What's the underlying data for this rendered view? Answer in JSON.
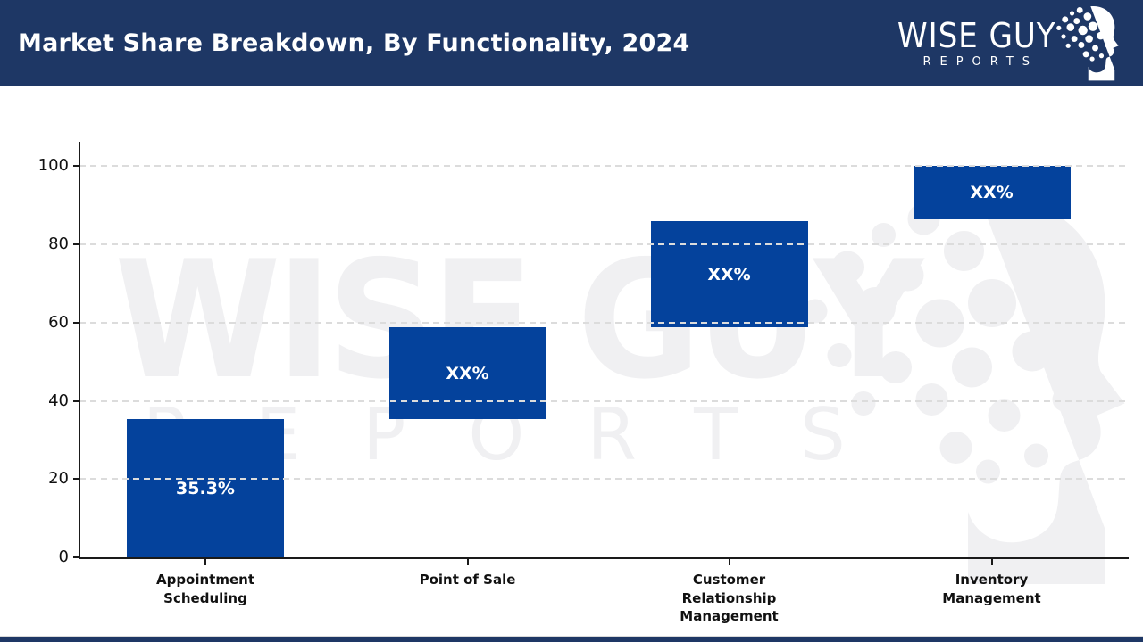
{
  "header": {
    "title": "Market Share Breakdown, By Functionality, 2024",
    "logo_line1": "WISE GUY",
    "logo_line2": "REPORTS"
  },
  "watermark": {
    "line1": "WISE GUY",
    "line2": "REPORTS"
  },
  "colors": {
    "header_bg": "#1e3765",
    "bar": "#04429c",
    "bar_label": "#ffffff",
    "grid": "#dcdcdc",
    "axis": "#1a1a1a",
    "watermark": "#f0f0f2"
  },
  "chart_data": {
    "type": "bar",
    "subtype": "waterfall",
    "title": "Market Share Breakdown, By Functionality, 2024",
    "categories": [
      "Appointment Scheduling",
      "Point of Sale",
      "Customer Relationship Management",
      "Inventory Management"
    ],
    "category_lines": [
      [
        "Appointment",
        "Scheduling"
      ],
      [
        "Point of Sale"
      ],
      [
        "Customer",
        "Relationship",
        "Management"
      ],
      [
        "Inventory",
        "Management"
      ]
    ],
    "segments": [
      {
        "category": "Appointment Scheduling",
        "label": "35.3%",
        "start": 0,
        "end": 35.3,
        "value": 35.3
      },
      {
        "category": "Point of Sale",
        "label": "XX%",
        "start": 35.3,
        "end": 58.8,
        "value": 23.5
      },
      {
        "category": "Customer Relationship Management",
        "label": "XX%",
        "start": 58.8,
        "end": 85.9,
        "value": 27.1
      },
      {
        "category": "Inventory Management",
        "label": "XX%",
        "start": 86.3,
        "end": 100,
        "value": 13.7
      }
    ],
    "ylim": [
      0,
      100
    ],
    "yticks": [
      0,
      20,
      40,
      60,
      80,
      100
    ],
    "xlabel": "",
    "ylabel": "",
    "grid": "horizontal dashed, drawn over bars",
    "legend": "none"
  }
}
